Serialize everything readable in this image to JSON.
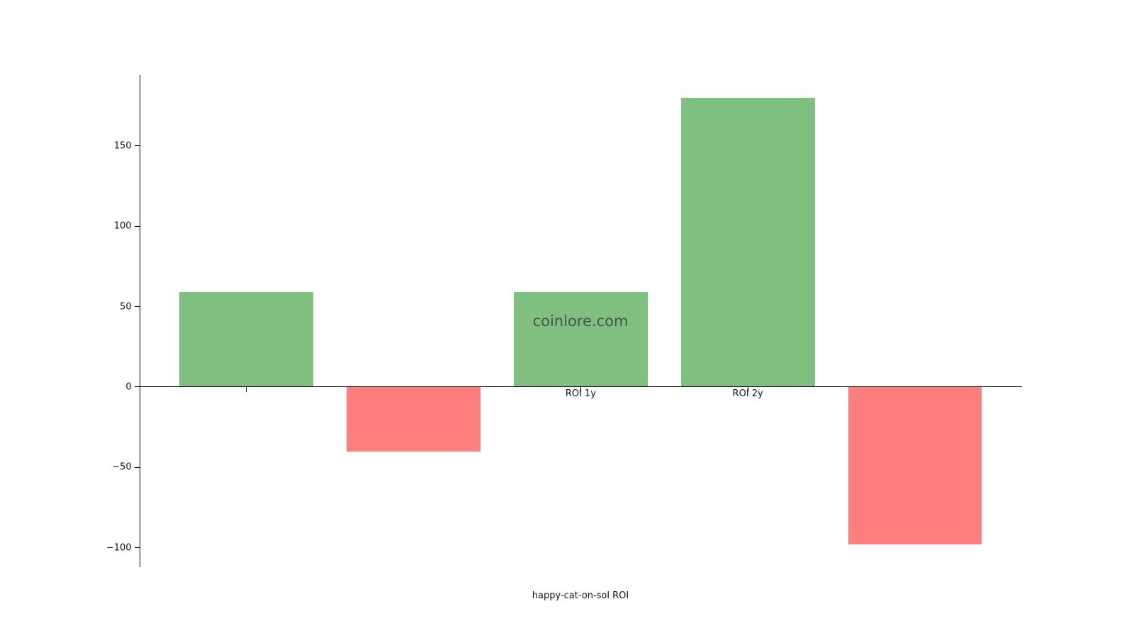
{
  "watermark": "coinlore.com",
  "chart_data": {
    "type": "bar",
    "title": "",
    "xlabel": "happy-cat-on-sol ROI",
    "ylabel": "",
    "categories": [
      "",
      "",
      "ROI 1y",
      "ROI 2y",
      ""
    ],
    "values": [
      59,
      -40,
      59,
      180,
      -98
    ],
    "yticks": [
      150,
      100,
      50,
      0,
      -50,
      -100
    ],
    "ytick_labels": [
      "150",
      "100",
      "50",
      "0",
      "−50",
      "−100"
    ],
    "ylim": [
      -112,
      194
    ],
    "grid": false,
    "legend_position": "none",
    "positive_color": "#7fbf7f",
    "negative_color": "#ff7f7f",
    "axis_color": "#000000",
    "background_color": "#ffffff",
    "watermark": "coinlore.com"
  }
}
